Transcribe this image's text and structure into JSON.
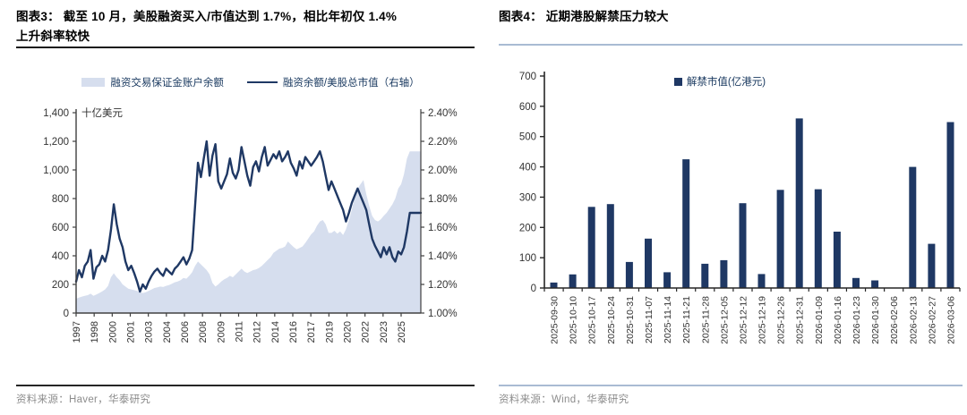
{
  "colors": {
    "navy": "#1F3864",
    "area_fill": "#D6DEEE",
    "axis_line": "#404040",
    "tick_text": "#333333",
    "legend_text": "#17375E",
    "source_text": "#8c8c8c",
    "left_rule": "#1a1a1a",
    "right_rule": "#A9BBD3"
  },
  "left_panel": {
    "title_line1": "图表3：  截至 10 月，美股融资买入/市值达到 1.7%，相比年初仅 1.4%",
    "title_line2": "上升斜率较快",
    "legend": [
      {
        "label": "融资交易保证金账户余额"
      },
      {
        "label": "融资余额/美股总市值（右轴）"
      }
    ],
    "source": "资料来源：Haver，华泰研究"
  },
  "right_panel": {
    "title": "图表4：  近期港股解禁压力较大",
    "legend": [
      {
        "label": "解禁市值(亿港元)"
      }
    ],
    "source": "资料来源：Wind，华泰研究"
  },
  "chart_data": [
    {
      "type": "area+line",
      "title": "美股融资交易保证金账户余额与融资余额/美股总市值",
      "unit_label": "十亿美元",
      "left_axis": {
        "min": 0,
        "max": 1400,
        "step": 200
      },
      "right_axis": {
        "min": 1.0,
        "max": 2.4,
        "step": 0.2,
        "format": "percent"
      },
      "x_tick_labels": [
        "1997",
        "1998",
        "2000",
        "2001",
        "2003",
        "2004",
        "2006",
        "2008",
        "2009",
        "2011",
        "2012",
        "2014",
        "2016",
        "2017",
        "2019",
        "2020",
        "2022",
        "2023",
        "2025"
      ],
      "x_start_year": 1997,
      "x_step_years": 0.25,
      "series": [
        {
          "name": "融资交易保证金账户余额",
          "type": "area",
          "axis": "left",
          "values": [
            100,
            108,
            115,
            120,
            125,
            135,
            120,
            130,
            140,
            152,
            165,
            190,
            250,
            278,
            250,
            230,
            200,
            185,
            170,
            165,
            160,
            155,
            145,
            140,
            145,
            155,
            165,
            175,
            180,
            185,
            182,
            190,
            195,
            205,
            215,
            220,
            230,
            245,
            240,
            260,
            285,
            330,
            360,
            340,
            320,
            300,
            270,
            210,
            185,
            200,
            220,
            235,
            245,
            260,
            250,
            270,
            290,
            310,
            290,
            280,
            290,
            300,
            305,
            315,
            330,
            350,
            370,
            390,
            420,
            435,
            450,
            455,
            465,
            500,
            480,
            460,
            445,
            455,
            465,
            490,
            520,
            550,
            570,
            610,
            640,
            650,
            620,
            560,
            560,
            575,
            555,
            570,
            545,
            585,
            650,
            720,
            810,
            870,
            900,
            930,
            830,
            750,
            680,
            650,
            640,
            655,
            680,
            700,
            730,
            760,
            800,
            870,
            900,
            970,
            1080,
            1130
          ]
        },
        {
          "name": "融资余额/美股总市值（右轴）",
          "type": "line",
          "axis": "right",
          "values": [
            1.22,
            1.3,
            1.25,
            1.33,
            1.36,
            1.44,
            1.24,
            1.32,
            1.34,
            1.4,
            1.36,
            1.44,
            1.58,
            1.76,
            1.62,
            1.52,
            1.46,
            1.36,
            1.3,
            1.33,
            1.28,
            1.22,
            1.15,
            1.2,
            1.17,
            1.22,
            1.26,
            1.29,
            1.31,
            1.28,
            1.26,
            1.31,
            1.29,
            1.27,
            1.31,
            1.33,
            1.36,
            1.39,
            1.34,
            1.38,
            1.44,
            1.75,
            2.05,
            1.95,
            2.08,
            2.2,
            1.96,
            2.1,
            2.18,
            1.92,
            1.87,
            1.92,
            1.97,
            2.08,
            1.98,
            1.94,
            2.0,
            2.16,
            2.06,
            1.96,
            1.89,
            2.02,
            2.06,
            1.99,
            2.09,
            2.16,
            2.03,
            2.07,
            2.11,
            2.08,
            2.13,
            2.06,
            2.09,
            2.13,
            2.05,
            2.01,
            1.96,
            2.06,
            2.01,
            2.09,
            2.06,
            2.03,
            2.06,
            2.09,
            2.13,
            2.06,
            1.96,
            1.86,
            1.92,
            1.87,
            1.82,
            1.77,
            1.72,
            1.64,
            1.7,
            1.77,
            1.82,
            1.87,
            1.82,
            1.77,
            1.72,
            1.62,
            1.52,
            1.47,
            1.43,
            1.39,
            1.46,
            1.41,
            1.46,
            1.39,
            1.36,
            1.43,
            1.41,
            1.46,
            1.57,
            1.7
          ]
        }
      ]
    },
    {
      "type": "bar",
      "title": "近期港股解禁市值",
      "legend": "解禁市值(亿港元)",
      "ylim": [
        0,
        700
      ],
      "ystep": 100,
      "categories": [
        "2025-09-30",
        "2025-10-10",
        "2025-10-17",
        "2025-10-24",
        "2025-10-31",
        "2025-11-07",
        "2025-11-14",
        "2025-11-21",
        "2025-11-28",
        "2025-12-05",
        "2025-12-12",
        "2025-12-19",
        "2025-12-26",
        "2025-12-31",
        "2026-01-09",
        "2026-01-16",
        "2026-01-23",
        "2026-01-30",
        "2026-02-06",
        "2026-02-13",
        "2026-02-27",
        "2026-03-06"
      ],
      "values": [
        18,
        45,
        268,
        277,
        86,
        163,
        52,
        425,
        80,
        92,
        280,
        46,
        324,
        560,
        326,
        186,
        33,
        25,
        0,
        400,
        146,
        548
      ]
    }
  ]
}
